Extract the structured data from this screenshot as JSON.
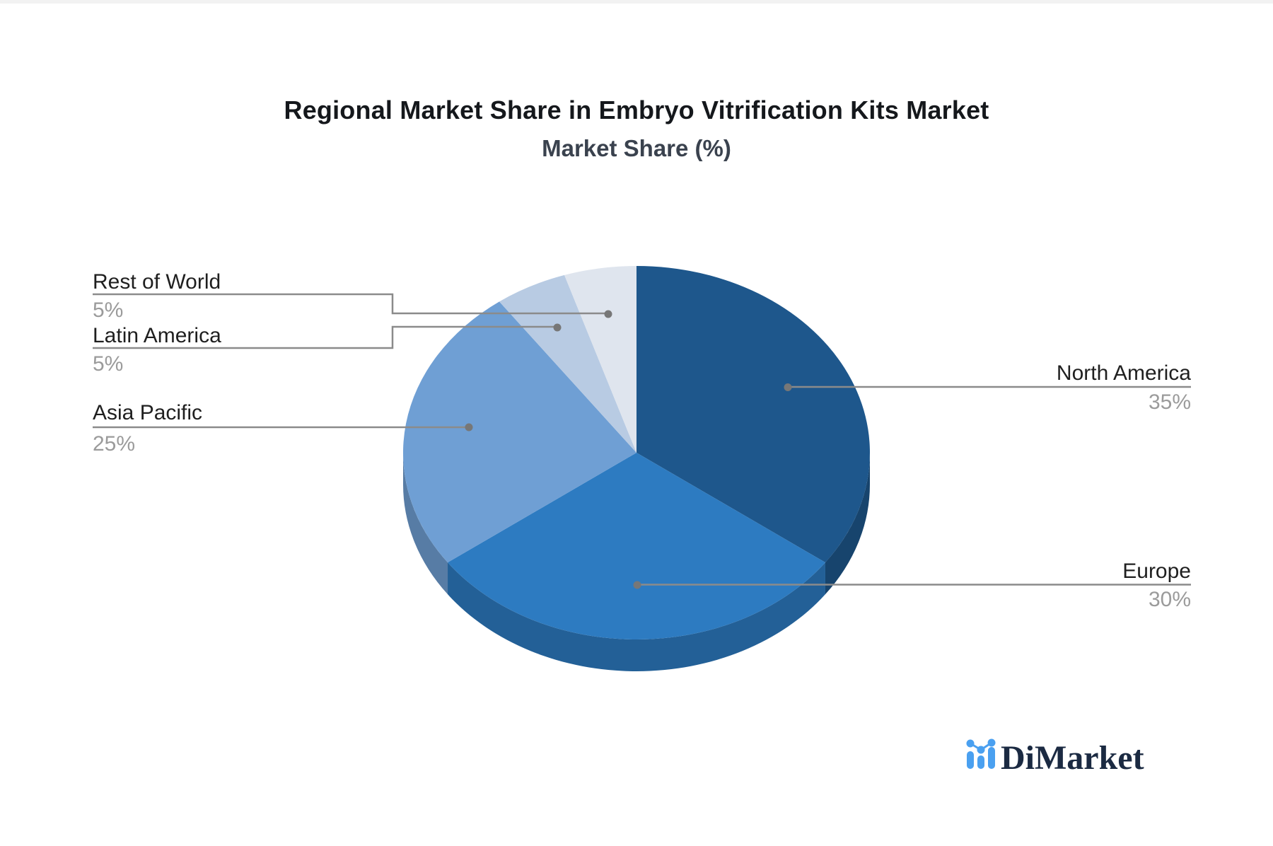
{
  "header": {
    "title": "Regional Market Share in Embryo Vitrification Kits Market",
    "subtitle": "Market Share (%)"
  },
  "chart_data": {
    "type": "pie",
    "style": "3d",
    "title": "Regional Market Share in Embryo Vitrification Kits Market",
    "subtitle": "Market Share (%)",
    "unit": "%",
    "direction": "clockwise",
    "start_angle_deg": 0,
    "categories": [
      "North America",
      "Europe",
      "Asia Pacific",
      "Latin America",
      "Rest of World"
    ],
    "values": [
      35,
      30,
      25,
      5,
      5
    ],
    "value_labels": [
      "35%",
      "30%",
      "25%",
      "5%",
      "5%"
    ],
    "colors": [
      "#1e578c",
      "#2d7bc1",
      "#6f9fd4",
      "#b8cbe3",
      "#dfe5ee"
    ],
    "label_sides": [
      "right",
      "right",
      "left",
      "left",
      "left"
    ],
    "legend": "none",
    "leader_line_color": "#8b8b8b",
    "leader_dot_color": "#777777",
    "label_text_color": "#1f1f1f",
    "value_text_color": "#9b9b9b"
  },
  "logo": {
    "text": "DiMarket",
    "icon": "bar-chart-with-trendline",
    "icon_color": "#4aa0f0",
    "text_color": "#1b2a42"
  }
}
